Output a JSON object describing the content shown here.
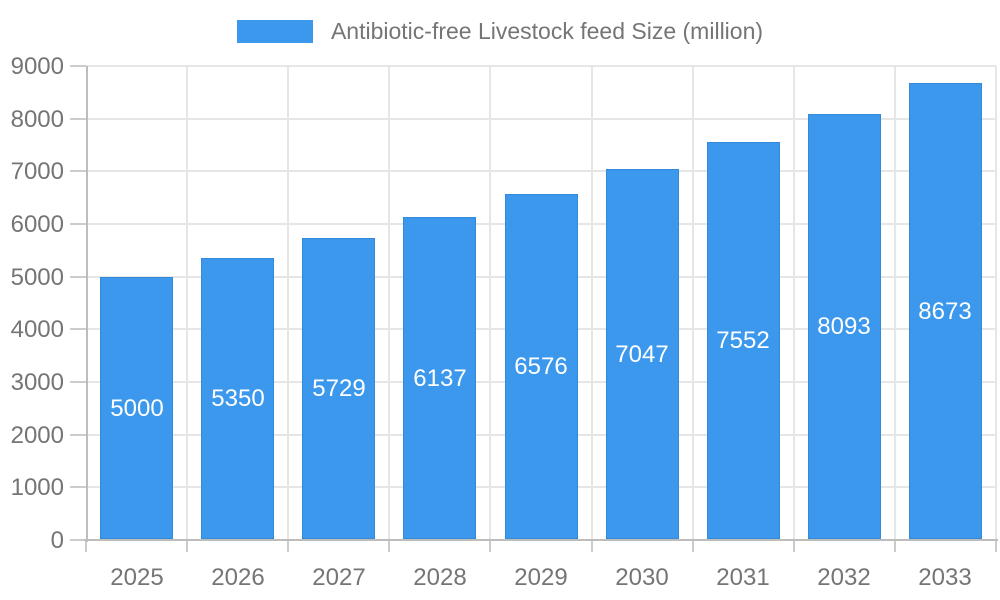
{
  "legend": {
    "label": "Antibiotic-free Livestock feed Size (million)"
  },
  "chart_data": {
    "type": "bar",
    "title": "Antibiotic-free Livestock feed Size (million)",
    "categories": [
      "2025",
      "2026",
      "2027",
      "2028",
      "2029",
      "2030",
      "2031",
      "2032",
      "2033"
    ],
    "values": [
      5000,
      5350,
      5729,
      6137,
      6576,
      7047,
      7552,
      8093,
      8673
    ],
    "xlabel": "",
    "ylabel": "",
    "ylim": [
      0,
      9000
    ],
    "ytick_step": 1000,
    "grid": true,
    "legend_position": "top",
    "value_labels": "inside-center",
    "colors": {
      "bar": "#3B98EC",
      "value_label": "#ffffff",
      "axis_text": "#757575",
      "grid": "#e6e6e6",
      "axis_line": "#bdbdbd",
      "tick": "#cccccc",
      "background": "#ffffff"
    }
  }
}
